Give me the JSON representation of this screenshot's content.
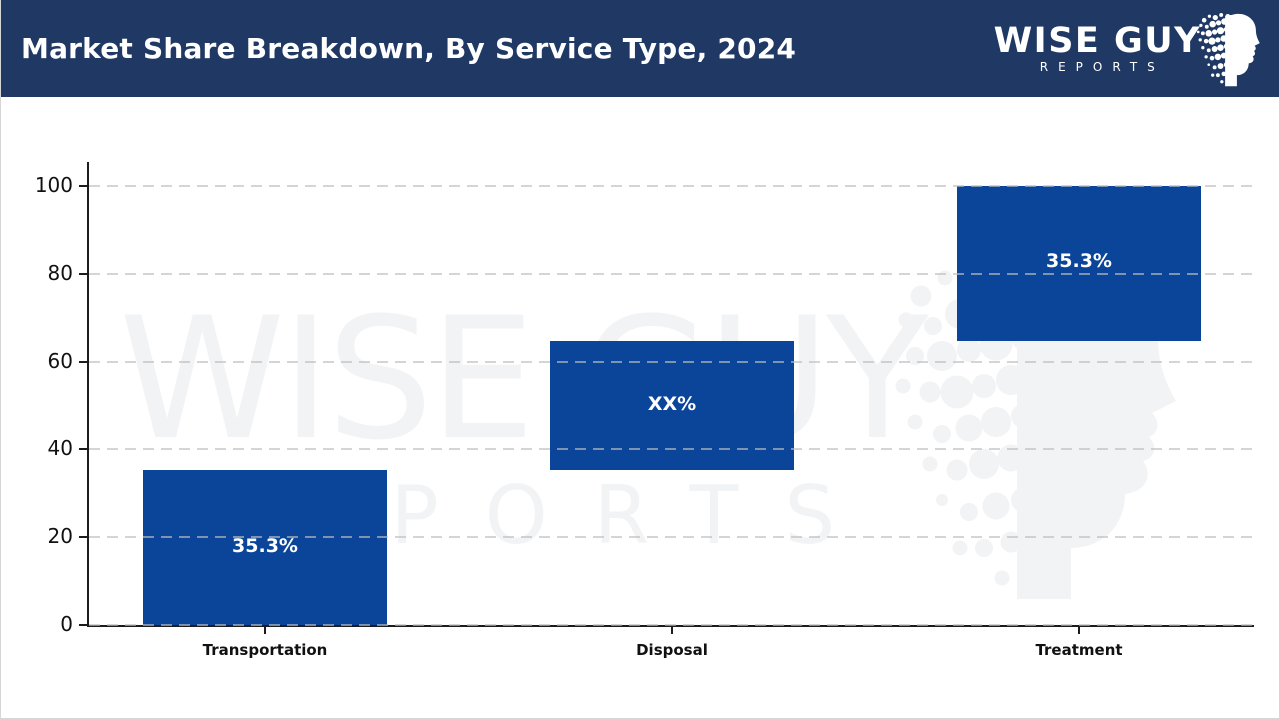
{
  "header": {
    "title": "Market Share Breakdown, By Service Type, 2024",
    "logo": {
      "line1": "WISE GUY",
      "line2": "REPORTS"
    }
  },
  "watermark": {
    "line1": "WISE GUY",
    "line2": "REPORTS"
  },
  "chart_data": {
    "type": "bar",
    "subtype": "stacked-waterfall",
    "title": "Market Share Breakdown, By Service Type, 2024",
    "categories": [
      "Transportation",
      "Disposal",
      "Treatment"
    ],
    "segments": [
      {
        "category": "Transportation",
        "start": 0,
        "end": 35.3,
        "label": "35.3%"
      },
      {
        "category": "Disposal",
        "start": 35.3,
        "end": 64.7,
        "label": "XX%"
      },
      {
        "category": "Treatment",
        "start": 64.7,
        "end": 100,
        "label": "35.3%"
      }
    ],
    "y_ticks": [
      0,
      20,
      40,
      60,
      80,
      100
    ],
    "ylim": [
      0,
      100
    ],
    "xlabel": "",
    "ylabel": "",
    "grid": true,
    "grid_style": "dashed",
    "legend": false,
    "colors": {
      "bar": "#0a4599",
      "bar_label": "#ffffff",
      "axis": "#1c1c1c",
      "grid": "rgba(190,190,190,0.65)",
      "header_bg": "#1f3864",
      "watermark": "#f2f3f5"
    }
  }
}
